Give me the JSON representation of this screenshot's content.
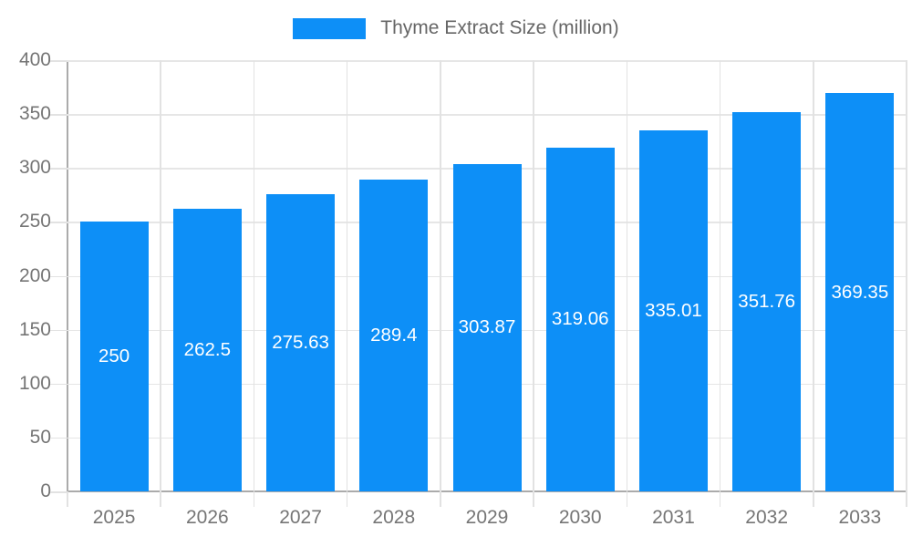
{
  "legend": {
    "label": "Thyme Extract Size (million)"
  },
  "colors": {
    "bar": "#0d8ff7",
    "bar_label_text": "#ffffff",
    "legend_text": "#666666",
    "axis_label_text": "#757575",
    "grid_h": "#e6e6e6",
    "grid_v": "#e2e2e2",
    "tick": "#e2e2e2",
    "axis_line": "#ababab",
    "background": "#ffffff"
  },
  "chart_data": {
    "type": "bar",
    "title": "Thyme Extract Size (million)",
    "categories": [
      "2025",
      "2026",
      "2027",
      "2028",
      "2029",
      "2030",
      "2031",
      "2032",
      "2033"
    ],
    "series": [
      {
        "name": "Thyme Extract Size (million)",
        "values": [
          250,
          262.5,
          275.63,
          289.4,
          303.87,
          319.06,
          335.01,
          351.76,
          369.35
        ]
      }
    ],
    "value_labels": [
      "250",
      "262.5",
      "275.63",
      "289.4",
      "303.87",
      "319.06",
      "335.01",
      "351.76",
      "369.35"
    ],
    "xlabel": "",
    "ylabel": "",
    "ylim": [
      0,
      400
    ],
    "ytick_step": 50,
    "ytick_labels": [
      "0",
      "50",
      "100",
      "150",
      "200",
      "250",
      "300",
      "350",
      "400"
    ],
    "grid": true,
    "legend_position": "top-center",
    "value_label_position": "inside-middle"
  }
}
